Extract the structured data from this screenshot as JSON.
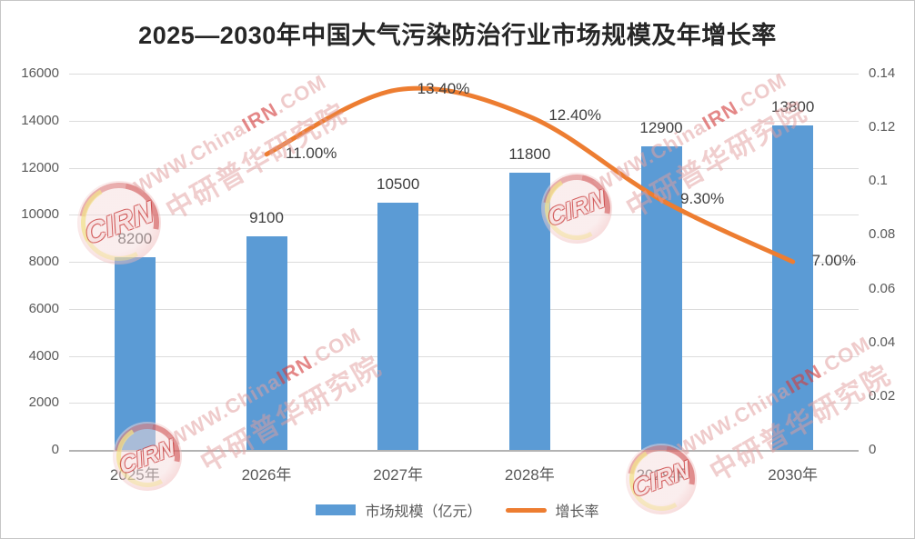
{
  "watermark": {
    "line1_prefix": "WWW.China",
    "line1_highlight": "IRN",
    "line1_suffix": ".COM",
    "line2": "中研普华研究院",
    "logo_text": "CIRN"
  },
  "chart_data": {
    "type": "combo",
    "title": "2025—2030年中国大气污染防治行业市场规模及年增长率",
    "categories": [
      "2025年",
      "2026年",
      "2027年",
      "2028年",
      "2029年",
      "2030年"
    ],
    "series": [
      {
        "name": "市场规模（亿元）",
        "type": "bar",
        "axis": "left",
        "color": "#5B9BD5",
        "values": [
          8200,
          9100,
          10500,
          11800,
          12900,
          13800
        ],
        "labels": [
          "8200",
          "9100",
          "10500",
          "11800",
          "12900",
          "13800"
        ]
      },
      {
        "name": "增长率",
        "type": "line",
        "axis": "right",
        "color": "#ED7D31",
        "smooth": true,
        "values": [
          null,
          0.11,
          0.134,
          0.124,
          0.093,
          0.07
        ],
        "labels": [
          null,
          "11.00%",
          "13.40%",
          "12.40%",
          "9.30%",
          "7.00%"
        ]
      }
    ],
    "left_axis": {
      "min": 0,
      "max": 16000,
      "step": 2000,
      "ticks": [
        "16000",
        "14000",
        "12000",
        "10000",
        "8000",
        "6000",
        "4000",
        "2000",
        "0"
      ]
    },
    "right_axis": {
      "min": 0,
      "max": 0.14,
      "step": 0.02,
      "ticks": [
        "0.14",
        "0.12",
        "0.1",
        "0.08",
        "0.06",
        "0.04",
        "0.02",
        "0"
      ]
    },
    "grid": true,
    "legend_position": "bottom"
  }
}
